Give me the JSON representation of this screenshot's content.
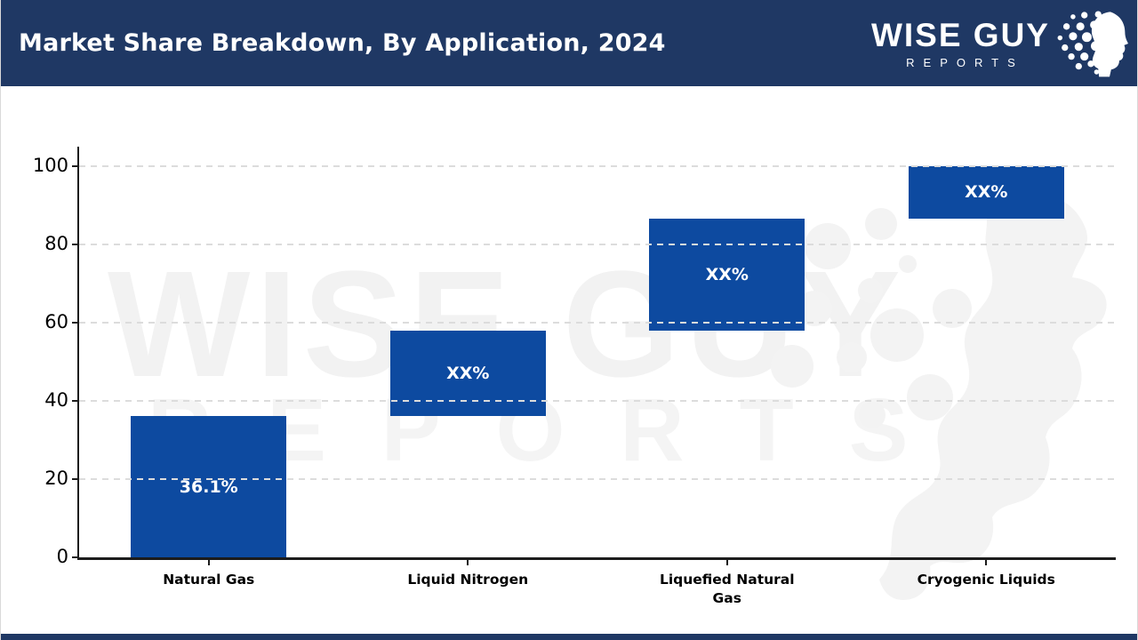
{
  "header": {
    "title": "Market Share Breakdown, By Application, 2024",
    "logo": {
      "line1": "WISE GUY",
      "line2": "REPORTS"
    }
  },
  "watermark": {
    "line1": "WISE GUY",
    "line2": "REPORTS"
  },
  "colors": {
    "header_bg": "#1f3864",
    "footer_bg": "#1f3864",
    "bar": "#0d4aa0",
    "grid": "#dcdcdc",
    "axis": "#1c1c1c",
    "bar_label_text": "#ffffff",
    "watermark": "#f2f2f2"
  },
  "chart_data": {
    "type": "bar",
    "subtype": "waterfall",
    "title": "Market Share Breakdown, By Application, 2024",
    "xlabel": "",
    "ylabel": "",
    "ylim": [
      0,
      100
    ],
    "yticks": [
      0,
      20,
      40,
      60,
      80,
      100
    ],
    "grid": "horizontal-dashed-over-bars",
    "legend": "none",
    "categories": [
      "Natural Gas",
      "Liquid Nitrogen",
      "Liquefied Natural Gas",
      "Cryogenic Liquids"
    ],
    "bars": [
      {
        "category": "Natural Gas",
        "start": 0,
        "end": 36.1,
        "label": "36.1%"
      },
      {
        "category": "Liquid Nitrogen",
        "start": 36.1,
        "end": 58.0,
        "label": "XX%"
      },
      {
        "category": "Liquefied Natural Gas",
        "start": 58.0,
        "end": 86.6,
        "label": "XX%"
      },
      {
        "category": "Cryogenic Liquids",
        "start": 86.6,
        "end": 100,
        "label": "XX%"
      }
    ]
  }
}
